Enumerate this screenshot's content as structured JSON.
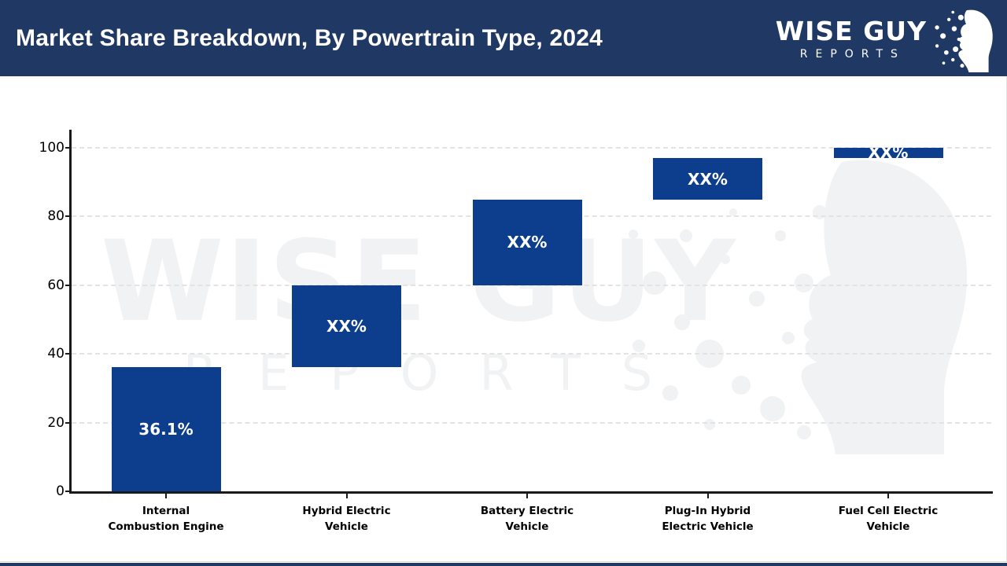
{
  "header": {
    "title": "Market Share Breakdown, By Powertrain Type, 2024",
    "bg_color": "#203864",
    "logo": {
      "line1": "WISE GUY",
      "line2": "REPORTS"
    }
  },
  "watermark": {
    "line1": "WISE GUY",
    "line2": "REPORTS"
  },
  "chart_data": {
    "type": "bar",
    "variant": "waterfall",
    "title": "Market Share Breakdown, By Powertrain Type, 2024",
    "xlabel": "",
    "ylabel": "",
    "ylim": [
      0,
      105
    ],
    "y_ticks": [
      0,
      20,
      40,
      60,
      80,
      100
    ],
    "grid": true,
    "legend": "none",
    "bar_color": "#0d3d8d",
    "label_color": "#ffffff",
    "categories": [
      [
        "Internal",
        "Combustion Engine"
      ],
      [
        "Hybrid Electric",
        "Vehicle"
      ],
      [
        "Battery Electric",
        "Vehicle"
      ],
      [
        "Plug-In Hybrid",
        "Electric Vehicle"
      ],
      [
        "Fuel Cell Electric",
        "Vehicle"
      ]
    ],
    "segments": [
      {
        "category": "Internal Combustion Engine",
        "label": "36.1%",
        "start": 0,
        "end": 36.1
      },
      {
        "category": "Hybrid Electric Vehicle",
        "label": "XX%",
        "start": 36.1,
        "end": 60
      },
      {
        "category": "Battery Electric Vehicle",
        "label": "XX%",
        "start": 60,
        "end": 84.7
      },
      {
        "category": "Plug-In Hybrid Electric Vehicle",
        "label": "XX%",
        "start": 84.7,
        "end": 97
      },
      {
        "category": "Fuel Cell Electric Vehicle",
        "label": "XX%",
        "start": 97,
        "end": 100
      }
    ]
  }
}
